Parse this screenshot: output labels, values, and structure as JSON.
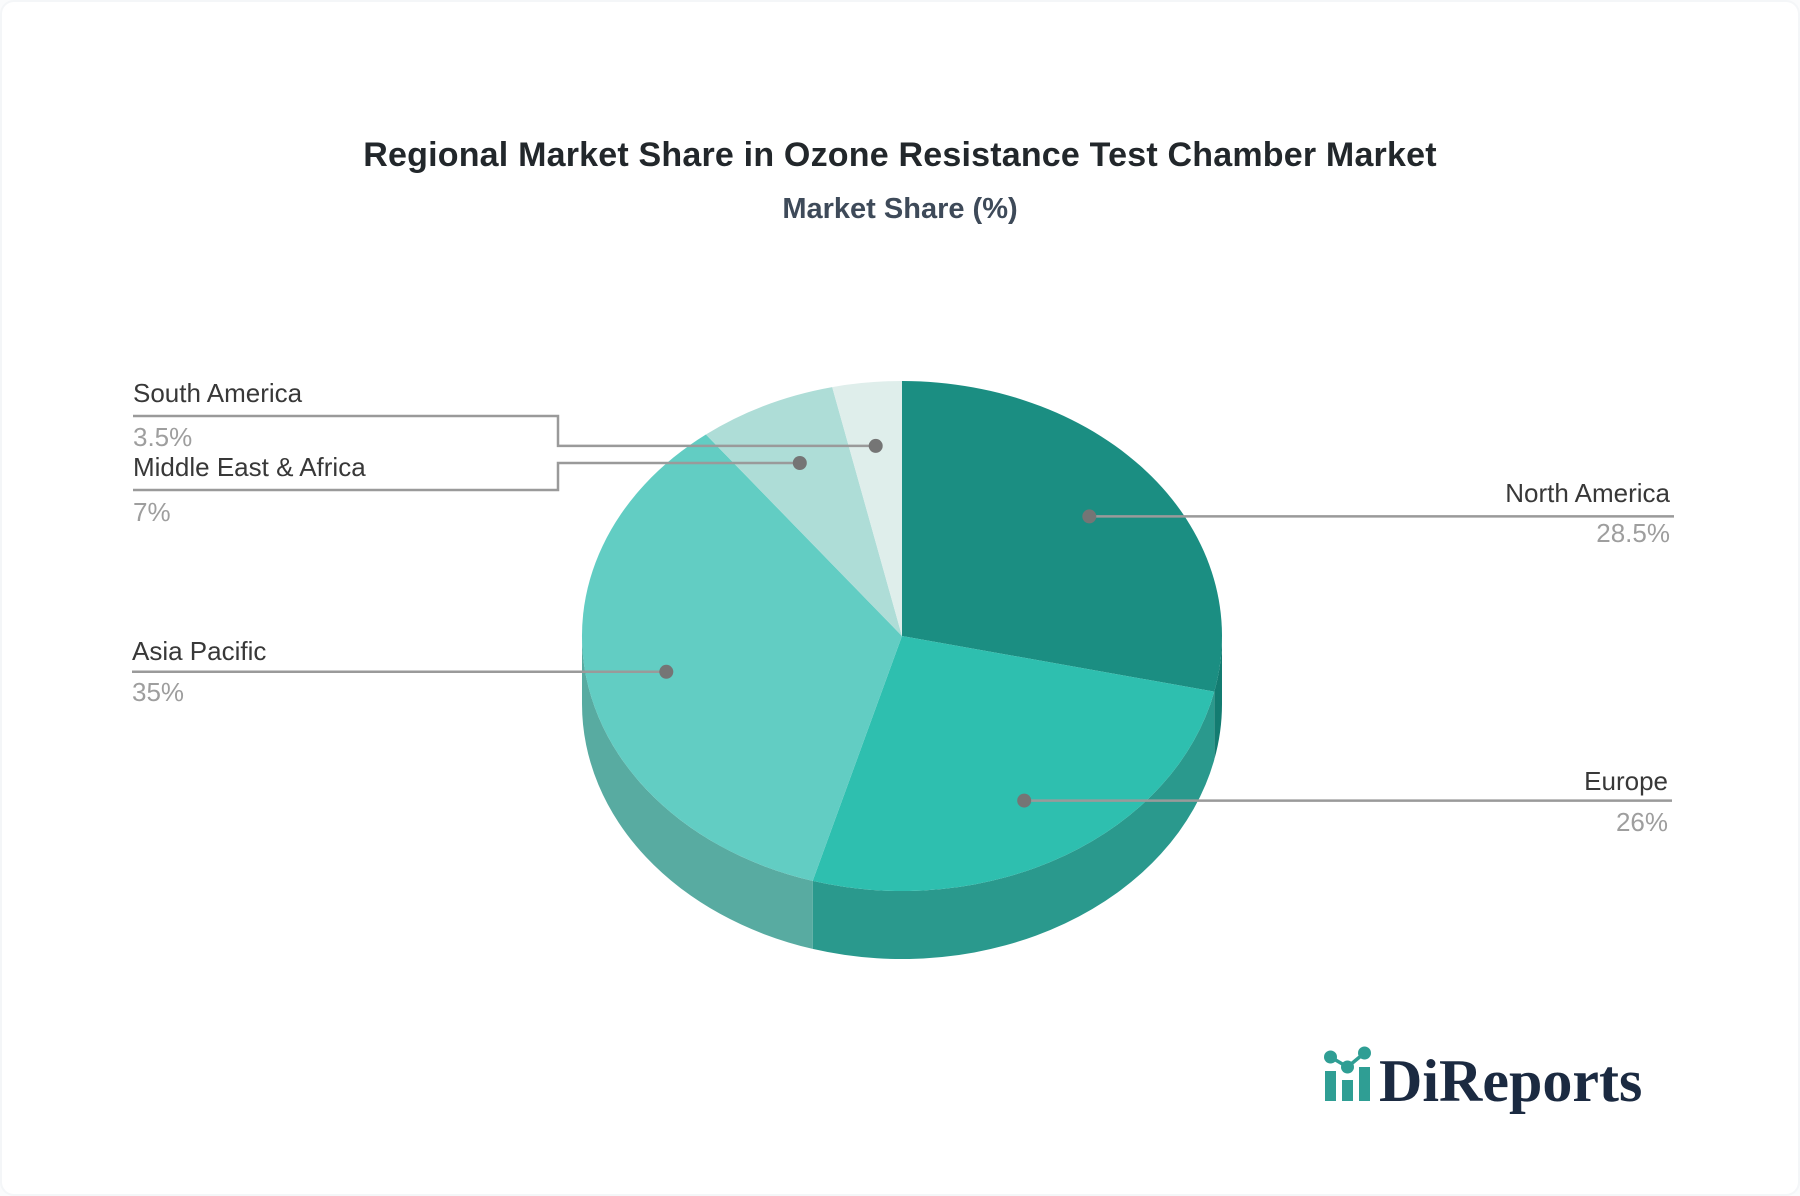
{
  "page": {
    "title": "Regional Market Share in Ozone Resistance Test Chamber Market",
    "subtitle": "Market Share (%)"
  },
  "chart_data": {
    "type": "pie",
    "title": "Regional Market Share in Ozone Resistance Test Chamber Market",
    "subtitle": "Market Share (%)",
    "unit": "%",
    "style": "3d-pie",
    "start_angle_deg": 0,
    "direction": "clockwise",
    "legend_position": "callout-labels",
    "segments": [
      {
        "label": "North America",
        "value": 28.5,
        "display_value": "28.5%",
        "color": "#1b8e82",
        "rim_color": "#137c71",
        "label_side": "right"
      },
      {
        "label": "Europe",
        "value": 26,
        "display_value": "26%",
        "color": "#2ebfaf",
        "rim_color": "#2a998d",
        "label_side": "right"
      },
      {
        "label": "Asia Pacific",
        "value": 35,
        "display_value": "35%",
        "color": "#62cdc3",
        "rim_color": "#58aba1",
        "label_side": "left"
      },
      {
        "label": "Middle East & Africa",
        "value": 7,
        "display_value": "7%",
        "color": "#aeddd7",
        "rim_color": "#96c2bc",
        "label_side": "left"
      },
      {
        "label": "South America",
        "value": 3.5,
        "display_value": "3.5%",
        "color": "#dfeeeb",
        "rim_color": "#c4d6d2",
        "label_side": "left"
      }
    ]
  },
  "branding": {
    "logo_text": "DiReports"
  },
  "colors": {
    "connector": "#9a9a9a",
    "dot": "#757575",
    "label_text": "#383838",
    "value_text": "#9e9e9e",
    "logo_text": "#1b2a41",
    "logo_mark": "#2f9e94"
  }
}
